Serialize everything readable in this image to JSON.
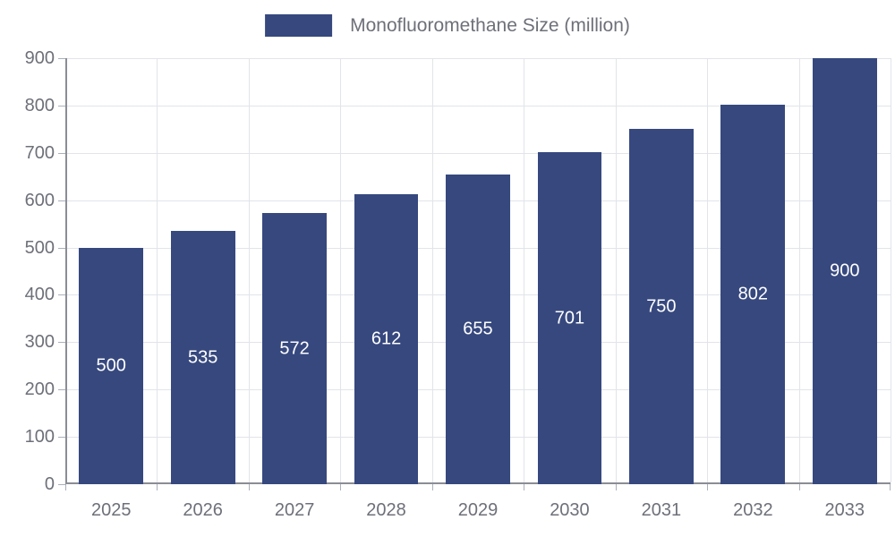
{
  "legend": {
    "label": "Monofluoromethane Size (million)"
  },
  "chart_data": {
    "type": "bar",
    "title": "Monofluoromethane Size (million)",
    "categories": [
      "2025",
      "2026",
      "2027",
      "2028",
      "2029",
      "2030",
      "2031",
      "2032",
      "2033"
    ],
    "values": [
      500,
      535,
      572,
      612,
      655,
      701,
      750,
      802,
      900
    ],
    "xlabel": "",
    "ylabel": "",
    "ylim": [
      0,
      900
    ],
    "yticks": [
      0,
      100,
      200,
      300,
      400,
      500,
      600,
      700,
      800,
      900
    ],
    "grid": true,
    "legend_position": "top-center",
    "bar_color": "#36487E",
    "value_label_color": "#ffffff",
    "axis_label_color": "#6E7079",
    "gridline_color": "#e2e4e9",
    "value_label_position": "inside-center"
  }
}
